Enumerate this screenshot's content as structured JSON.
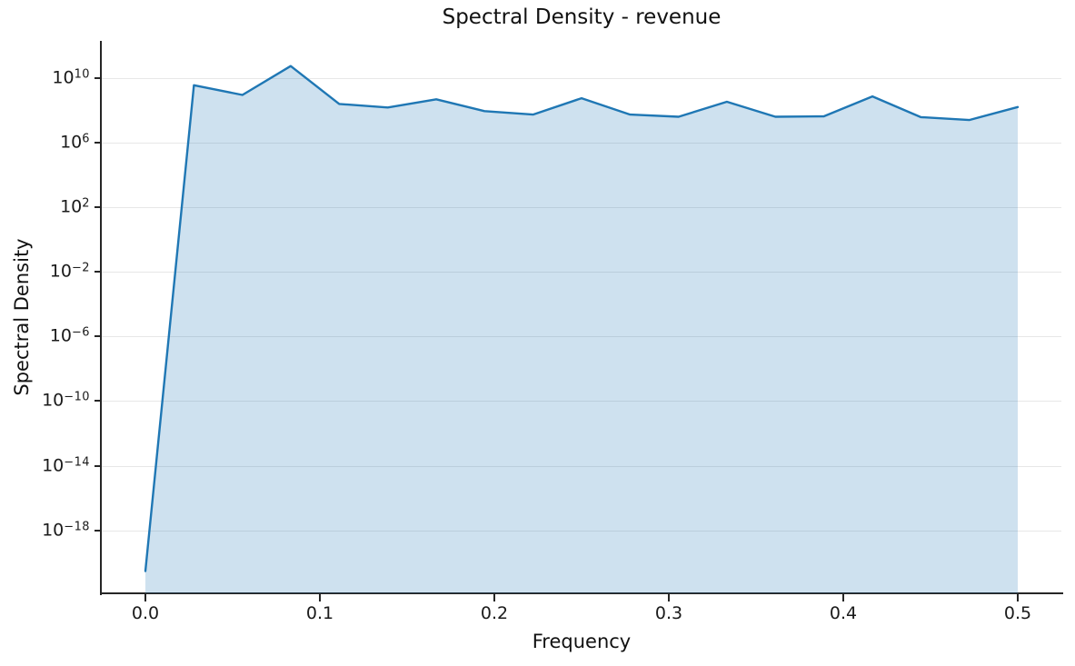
{
  "chart_data": {
    "type": "area",
    "title": "Spectral Density - revenue",
    "xlabel": "Frequency",
    "ylabel": "Spectral Density",
    "yscale": "log",
    "grid": "horizontal-only",
    "legend": "none",
    "xlim": [
      -0.025,
      0.525
    ],
    "ylim_log10": [
      -21.9,
      12.3
    ],
    "x": [
      0.0,
      0.0278,
      0.0556,
      0.0833,
      0.1111,
      0.1389,
      0.1667,
      0.1944,
      0.2222,
      0.25,
      0.2778,
      0.3056,
      0.3333,
      0.3611,
      0.3889,
      0.4167,
      0.4444,
      0.4722,
      0.5
    ],
    "y": [
      3e-21,
      3600000000.0,
      900000000.0,
      55000000000.0,
      250000000.0,
      150000000.0,
      480000000.0,
      90000000.0,
      55000000.0,
      560000000.0,
      55000000.0,
      40000000.0,
      340000000.0,
      40000000.0,
      43000000.0,
      730000000.0,
      38000000.0,
      25000000.0,
      160000000.0
    ],
    "x_ticks": [
      {
        "value": 0.0,
        "label": "0.0"
      },
      {
        "value": 0.1,
        "label": "0.1"
      },
      {
        "value": 0.2,
        "label": "0.2"
      },
      {
        "value": 0.3,
        "label": "0.3"
      },
      {
        "value": 0.4,
        "label": "0.4"
      },
      {
        "value": 0.5,
        "label": "0.5"
      }
    ],
    "y_ticks": [
      {
        "exp": 10,
        "label": "10^10"
      },
      {
        "exp": 6,
        "label": "10^6"
      },
      {
        "exp": 2,
        "label": "10^2"
      },
      {
        "exp": -2,
        "label": "10^-2"
      },
      {
        "exp": -6,
        "label": "10^-6"
      },
      {
        "exp": -10,
        "label": "10^-10"
      },
      {
        "exp": -14,
        "label": "10^-14"
      },
      {
        "exp": -18,
        "label": "10^-18"
      }
    ]
  },
  "colors": {
    "line": "#1f77b4",
    "fill": "rgba(31,119,180,0.22)",
    "grid": "#e7e7e7",
    "spine": "#262626",
    "text": "#1a1a1a"
  }
}
